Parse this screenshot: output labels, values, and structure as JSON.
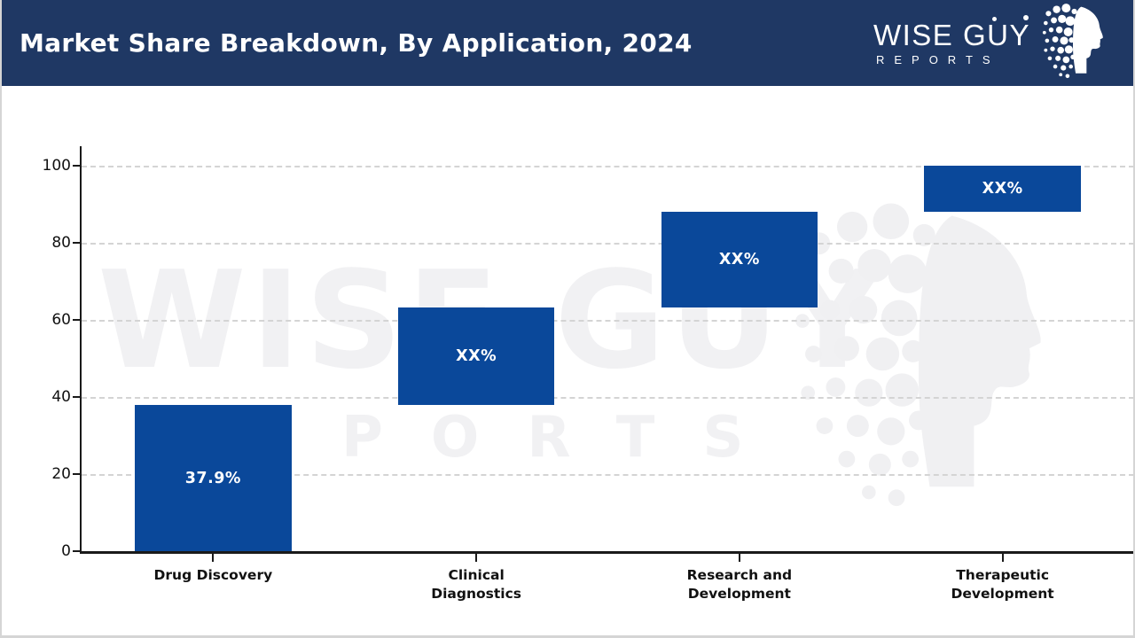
{
  "header": {
    "title": "Market Share Breakdown, By Application, 2024",
    "logo": {
      "line1": "WISE GUY",
      "line2": "REPORTS"
    }
  },
  "watermark": {
    "line1": "WISE GUY",
    "line2": "REPORTS"
  },
  "chart_data": {
    "type": "bar",
    "subtype": "waterfall-floating-bars",
    "title": "Market Share Breakdown, By Application, 2024",
    "xlabel": "",
    "ylabel": "",
    "ylim": [
      0,
      105
    ],
    "yticks": [
      0,
      20,
      40,
      60,
      80,
      100
    ],
    "grid": "dashed-horizontal",
    "legend": "none",
    "bar_color": "#0a489a",
    "label_color": "#ffffff",
    "categories": [
      "Drug Discovery",
      "Clinical Diagnostics",
      "Research and Development",
      "Therapeutic Development"
    ],
    "category_label_lines": [
      [
        "Drug Discovery"
      ],
      [
        "Clinical",
        "Diagnostics"
      ],
      [
        "Research and",
        "Development"
      ],
      [
        "Therapeutic",
        "Development"
      ]
    ],
    "segments": [
      {
        "category": "Drug Discovery",
        "start": 0,
        "end": 37.9,
        "label": "37.9%"
      },
      {
        "category": "Clinical Diagnostics",
        "start": 37.9,
        "end": 63.2,
        "label": "XX%"
      },
      {
        "category": "Research and Development",
        "start": 63.2,
        "end": 88.1,
        "label": "XX%"
      },
      {
        "category": "Therapeutic Development",
        "start": 88.1,
        "end": 100,
        "label": "XX%"
      }
    ]
  }
}
